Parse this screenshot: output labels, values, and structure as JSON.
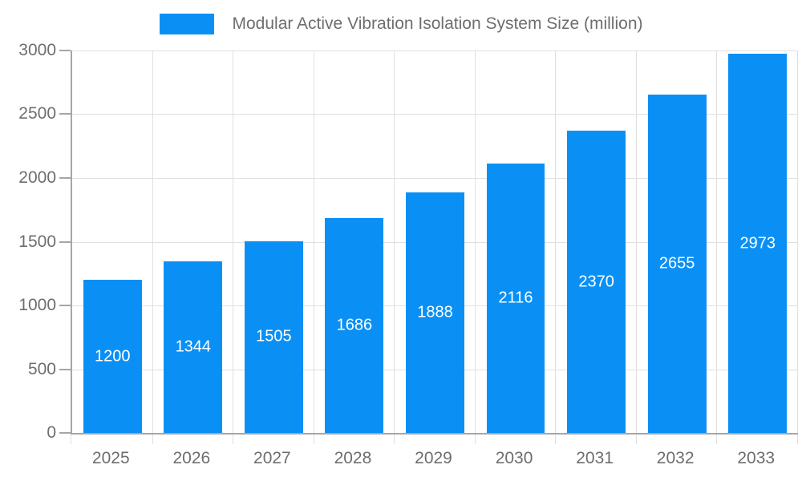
{
  "legend": {
    "label": "Modular Active Vibration Isolation System Size (million)"
  },
  "colors": {
    "bar": "#0a90f5",
    "bar_label": "#ffffff",
    "axis": "#a6a6a6",
    "grid": "#e0e0e0",
    "label": "#6e6e6e",
    "background": "#ffffff"
  },
  "chart_data": {
    "type": "bar",
    "categories": [
      "2025",
      "2026",
      "2027",
      "2028",
      "2029",
      "2030",
      "2031",
      "2032",
      "2033"
    ],
    "values": [
      1200,
      1344,
      1505,
      1686,
      1888,
      2116,
      2370,
      2655,
      2973
    ],
    "title": "",
    "legend": "Modular Active Vibration Isolation System Size (million)",
    "xlabel": "",
    "ylabel": "",
    "ylim": [
      0,
      3000
    ],
    "yticks": [
      0,
      500,
      1000,
      1500,
      2000,
      2500,
      3000
    ],
    "grid": true,
    "legend_position": "top-center",
    "bar_labels": "inside-middle"
  }
}
